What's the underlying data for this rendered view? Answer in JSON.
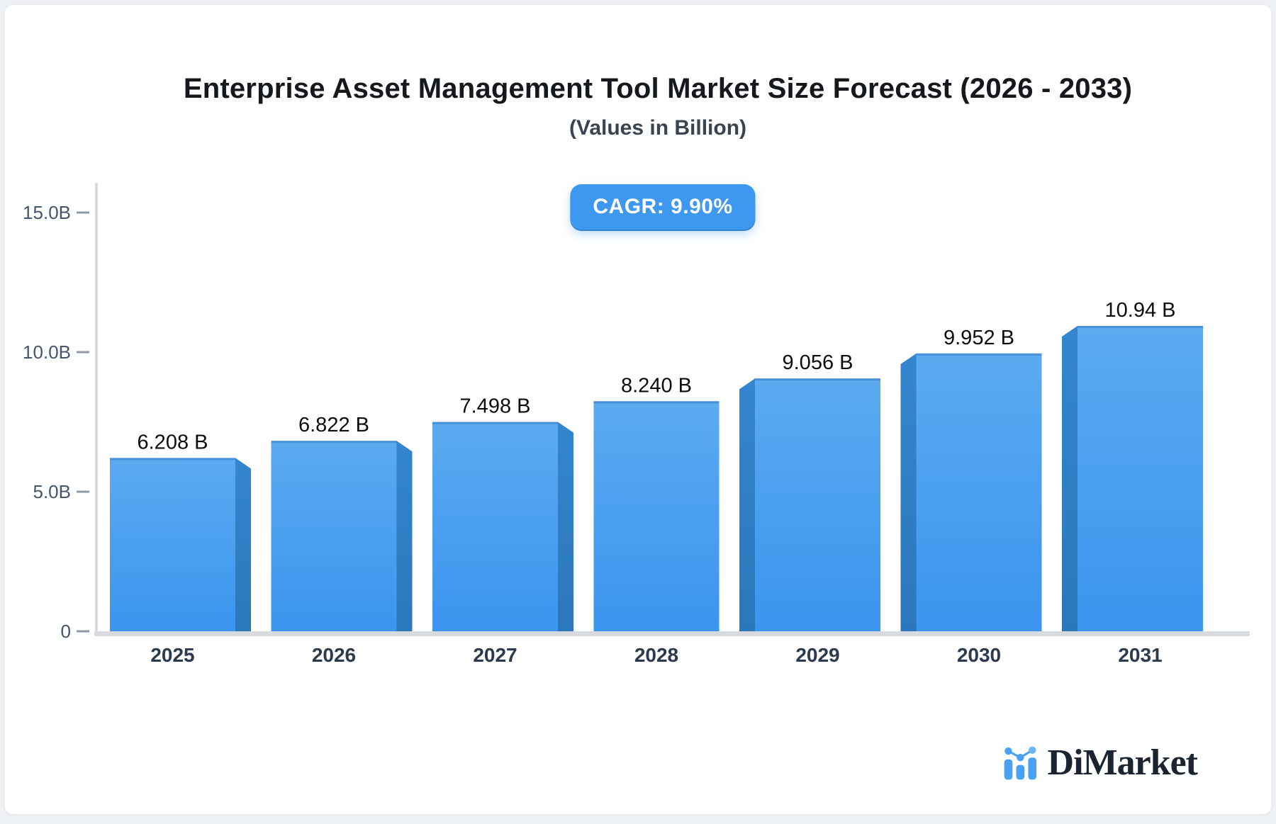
{
  "header": {
    "title": "Enterprise Asset Management Tool Market Size Forecast (2026 - 2033)",
    "subtitle": "(Values in Billion)"
  },
  "badge": {
    "label": "CAGR: 9.90%",
    "color": "#3e98f0"
  },
  "chart_data": {
    "type": "bar",
    "title": "Enterprise Asset Management Tool Market Size Forecast (2026 - 2033)",
    "subtitle": "(Values in Billion)",
    "categories": [
      "2025",
      "2026",
      "2027",
      "2028",
      "2029",
      "2030",
      "2031"
    ],
    "values": [
      6.208,
      6.822,
      7.498,
      8.24,
      9.056,
      9.952,
      10.94
    ],
    "bar_labels": [
      "6.208 B",
      "6.822 B",
      "7.498 B",
      "8.240 B",
      "9.056 B",
      "9.952 B",
      "10.94 B"
    ],
    "yticks": [
      {
        "value": 15,
        "label": "15.0B"
      },
      {
        "value": 10,
        "label": "10.0B"
      },
      {
        "value": 5,
        "label": "5.0B"
      },
      {
        "value": 0,
        "label": "0"
      }
    ],
    "ylim": [
      0,
      15
    ],
    "xlabel": "",
    "ylabel": "",
    "grid": false,
    "legend": false,
    "colors": {
      "bar_face_top": "#5caaf0",
      "bar_face_bottom": "#3a95ef",
      "bar_top_edge": "#4a90d9",
      "bar_side": "#2e7dc4",
      "axis": "#d7dade",
      "tick": "#8f99a4",
      "tick_label": "#46556a",
      "year_label": "#2c3a4e",
      "value_label": "#0b0d10"
    }
  },
  "logo": {
    "text": "DiMarket",
    "icon": "bar-chart-icon",
    "icon_color": "#4aa0f5",
    "text_color": "#1b2430"
  }
}
